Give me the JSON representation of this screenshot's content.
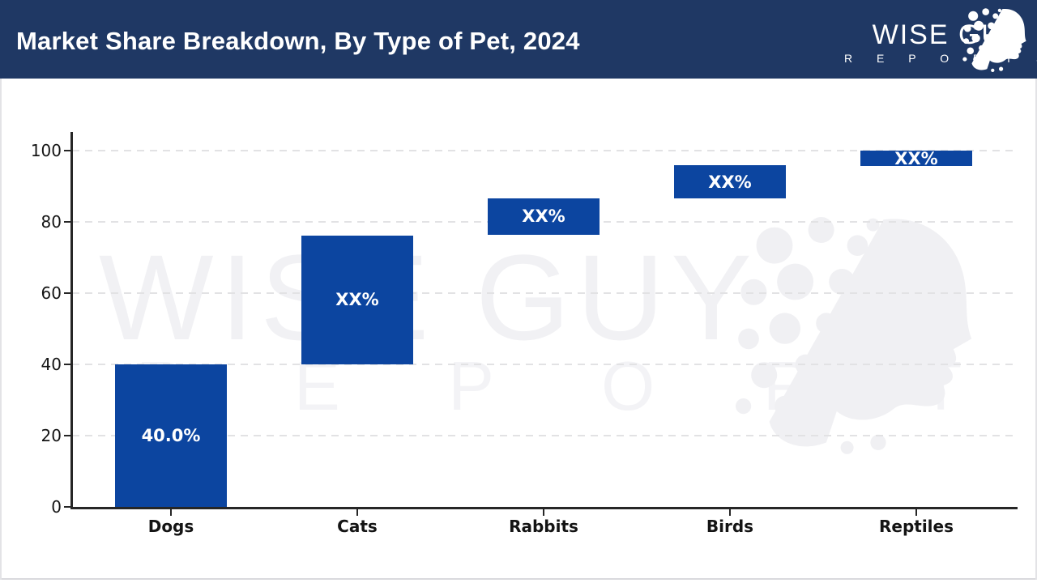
{
  "header": {
    "title": "Market Share Breakdown, By Type of Pet, 2024",
    "bg_color": "#1f3864",
    "logo": {
      "line1": "WISE GUY",
      "line2": "R E P O R T S"
    }
  },
  "watermark": {
    "line1": "WISE GUY",
    "line2": "R E P O R T S"
  },
  "chart_data": {
    "type": "bar",
    "subtype": "waterfall",
    "title": "Market Share Breakdown, By Type of Pet, 2024",
    "categories": [
      "Dogs",
      "Cats",
      "Rabbits",
      "Birds",
      "Reptiles"
    ],
    "segments": [
      {
        "category": "Dogs",
        "start": 0,
        "end": 40,
        "label": "40.0%"
      },
      {
        "category": "Cats",
        "start": 40,
        "end": 76.2,
        "label": "XX%"
      },
      {
        "category": "Rabbits",
        "start": 76.4,
        "end": 86.6,
        "label": "XX%"
      },
      {
        "category": "Birds",
        "start": 86.6,
        "end": 95.9,
        "label": "XX%"
      },
      {
        "category": "Reptiles",
        "start": 95.6,
        "end": 100,
        "label": "XX%"
      }
    ],
    "ylim": [
      0,
      105
    ],
    "yticks": [
      0,
      20,
      40,
      60,
      80,
      100
    ],
    "grid": "dashed-horizontal",
    "legend": "none",
    "bar_color": "#0c45a0",
    "bar_label_color": "#ffffff",
    "grid_color": "#e2e2e4",
    "axis_color": "#262626",
    "xlabel": "",
    "ylabel": ""
  }
}
